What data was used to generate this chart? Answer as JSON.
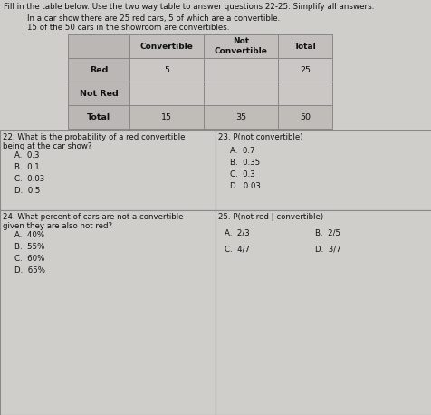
{
  "title": "Fill in the table below. Use the two way table to answer questions 22-25. Simplify all answers.",
  "intro1": "In a car show there are 25 red cars, 5 of which are a convertible.",
  "intro2": "15 of the 50 cars in the showroom are convertibles.",
  "col_headers": [
    "",
    "Convertible",
    "Not\nConvertible",
    "Total"
  ],
  "row_labels": [
    "Red",
    "Not Red",
    "Total"
  ],
  "table_data": [
    [
      "",
      "5",
      "",
      "25"
    ],
    [
      "",
      "",
      "",
      ""
    ],
    [
      "",
      "15",
      "35",
      "50"
    ]
  ],
  "q22_title": "22. What is the probability of a red convertible\nbeing at the car show?",
  "q22_choices": [
    "A.  0.3",
    "B.  0.1",
    "C.  0.03",
    "D.  0.5"
  ],
  "q23_title": "23. P(not convertible)",
  "q23_choices": [
    "A.  0.7",
    "B.  0.35",
    "C.  0.3",
    "D.  0.03"
  ],
  "q24_title": "24. What percent of cars are not a convertible\ngiven they are also not red?",
  "q24_choices": [
    "A.  40%",
    "B.  55%",
    "C.  60%",
    "D.  65%"
  ],
  "q25_title": "25. P(not red | convertible)",
  "q25_choices": [
    "A.  2/3",
    "B.  2/5",
    "C.  4/7",
    "D.  3/7"
  ],
  "bg": "#d0cecb",
  "table_header_bg": "#c2bfbc",
  "table_cell_bg": "#cac7c4",
  "table_label_bg": "#bab7b4",
  "table_total_bg": "#c0bdb9",
  "border_color": "#888888",
  "text_color": "#111111"
}
